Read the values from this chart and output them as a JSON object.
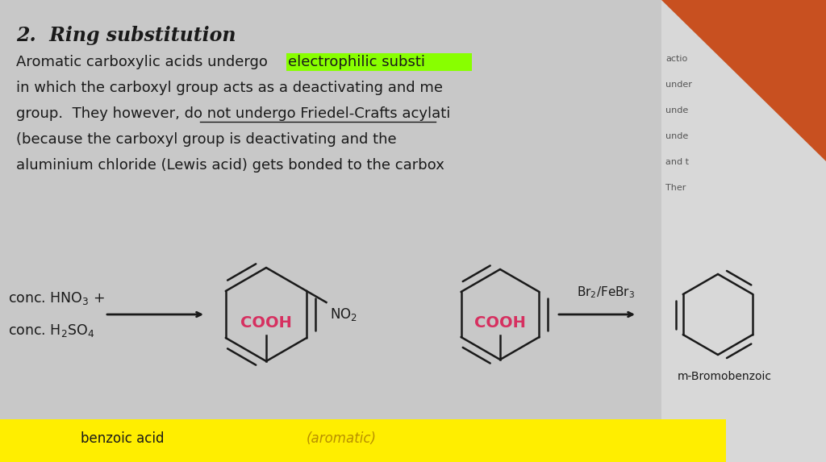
{
  "title": "2.  Ring substitution",
  "bg_page_color": "#c8c8c8",
  "bg_right_color": "#d8d8d8",
  "orange_color": "#c85020",
  "text_color": "#1a1a1a",
  "pink_color": "#d63060",
  "green_highlight": "#88ff00",
  "yellow_color": "#ffee00",
  "line1_pre": "Aromatic carboxylic acids undergo ",
  "line1_highlight": "electrophilic substi",
  "line2": "in which the carboxyl group acts as a deactivating and me",
  "line3": "group.  They however, do not undergo Friedel-Crafts acylati",
  "line4": "(because the carboxyl group is deactivating and the",
  "line5": "aluminium chloride (Lewis acid) gets bonded to the carbox",
  "reagent1": "conc. HNO$_3$ +",
  "reagent2": "conc. H$_2$SO$_4$",
  "arrow_label": "Br$_2$/FeBr$_3$",
  "label_cooh": "COOH",
  "label_no2": "NO$_2$",
  "label_mbromo": "m-Bromobenzoic",
  "bottom_text1": "benzoic acid",
  "bottom_text2": "(aromatic)",
  "fontsize_body": 13,
  "fontsize_title": 17
}
